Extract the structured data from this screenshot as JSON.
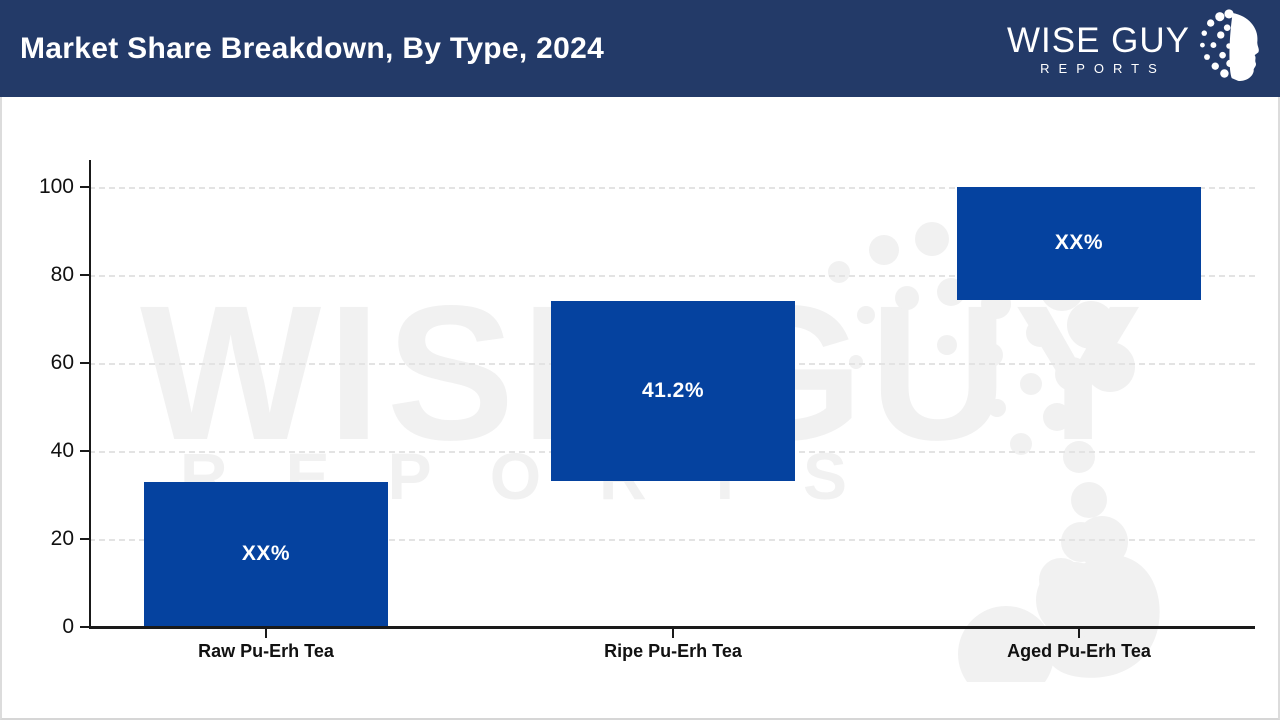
{
  "header": {
    "title": "Market Share Breakdown, By Type, 2024",
    "logo": {
      "line1": "WISE GUY",
      "line2": "REPORTS"
    }
  },
  "watermark": {
    "line1": "WISE GUY",
    "line2": "REPORTS"
  },
  "colors": {
    "header_bg": "#233a68",
    "bar_fill": "#05429f",
    "axis": "#1a1a1a",
    "gridline": "#e3e3e3",
    "value_label": "#ffffff",
    "watermark": "#f1f1f1"
  },
  "chart_data": {
    "type": "bar",
    "subtype": "waterfall-floating-bars",
    "title": "Market Share Breakdown, By Type, 2024",
    "categories": [
      "Raw Pu-Erh Tea",
      "Ripe Pu-Erh Tea",
      "Aged Pu-Erh Tea"
    ],
    "bars": [
      {
        "category": "Raw Pu-Erh Tea",
        "start": 0,
        "end": 33,
        "value_label": "XX%"
      },
      {
        "category": "Ripe Pu-Erh Tea",
        "start": 33,
        "end": 74.2,
        "value": 41.2,
        "value_label": "41.2%"
      },
      {
        "category": "Aged Pu-Erh Tea",
        "start": 74.2,
        "end": 100,
        "value_label": "XX%"
      }
    ],
    "xlabel": "",
    "ylabel": "",
    "ylim": [
      0,
      100
    ],
    "yticks": [
      0,
      20,
      40,
      60,
      80,
      100
    ],
    "grid": "horizontal-dashed",
    "legend": "none"
  }
}
